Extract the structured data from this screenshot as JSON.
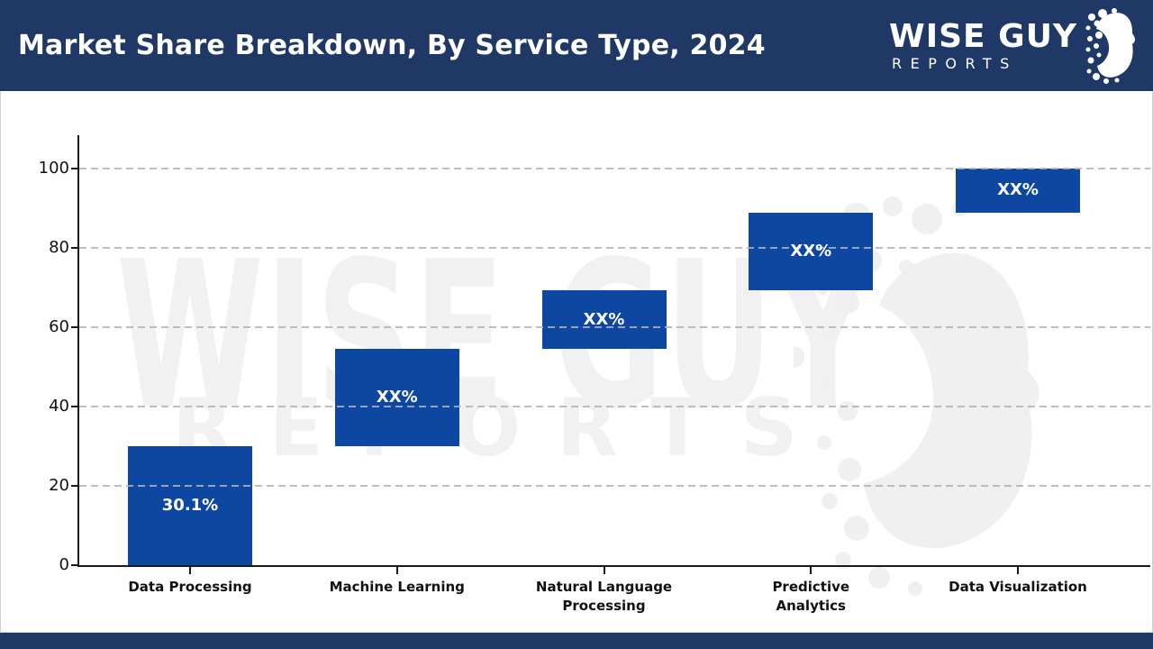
{
  "header": {
    "title": "Market Share Breakdown, By Service Type, 2024",
    "logo_line1": "WISE GUY",
    "logo_line2": "REPORTS",
    "bg_color": "#1f3865"
  },
  "watermark": {
    "line1": "WISE GUY",
    "line2": "REPORTS",
    "color": "#f1f1f1"
  },
  "chart_data": {
    "type": "bar",
    "subtype": "waterfall",
    "title": "Market Share Breakdown, By Service Type, 2024",
    "categories": [
      "Data Processing",
      "Machine Learning",
      "Natural Language\nProcessing",
      "Predictive\nAnalytics",
      "Data Visualization"
    ],
    "series": [
      {
        "name": "Market Share %",
        "segments": [
          {
            "category": "Data Processing",
            "start": 0,
            "end": 30.1,
            "label": "30.1%"
          },
          {
            "category": "Machine Learning",
            "start": 30.1,
            "end": 54.5,
            "label": "XX%"
          },
          {
            "category": "Natural Language Processing",
            "start": 54.5,
            "end": 69.3,
            "label": "XX%"
          },
          {
            "category": "Predictive Analytics",
            "start": 69.3,
            "end": 88.9,
            "label": "XX%"
          },
          {
            "category": "Data Visualization",
            "start": 88.9,
            "end": 100,
            "label": "XX%"
          }
        ]
      }
    ],
    "xlabel": "",
    "ylabel": "",
    "ylim": [
      0,
      100
    ],
    "yticks": [
      0,
      20,
      40,
      60,
      80,
      100
    ],
    "grid": "horizontal-dashed",
    "legend": false,
    "bar_color": "#0d47a1",
    "bar_label_color": "#ffffff"
  }
}
